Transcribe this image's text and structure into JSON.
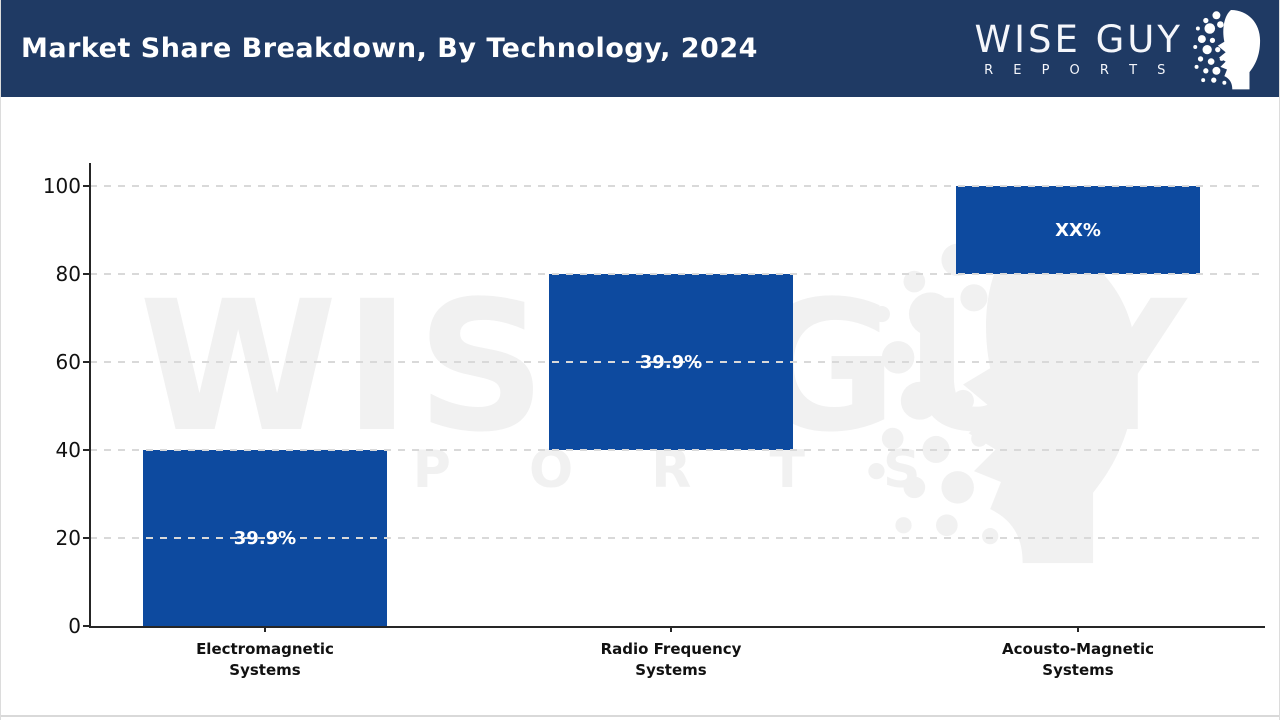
{
  "header": {
    "title": "Market Share Breakdown, By Technology, 2024",
    "brand": {
      "line1": "WISE GUY",
      "line2": "R E P O R T S"
    }
  },
  "watermark": {
    "line1": "WISE GUY",
    "line2": "R E P O R T S"
  },
  "chart_data": {
    "type": "bar",
    "subtype": "waterfall",
    "title": "Market Share Breakdown, By Technology, 2024",
    "categories": [
      "Electromagnetic Systems",
      "Radio Frequency Systems",
      "Acousto-Magnetic Systems"
    ],
    "category_lines": [
      [
        "Electromagnetic",
        "Systems"
      ],
      [
        "Radio Frequency",
        "Systems"
      ],
      [
        "Acousto-Magnetic",
        "Systems"
      ]
    ],
    "bars": [
      {
        "start": 0,
        "end": 40,
        "label": "39.9%"
      },
      {
        "start": 40,
        "end": 80,
        "label": "39.9%"
      },
      {
        "start": 80,
        "end": 100,
        "label": "XX%"
      }
    ],
    "ylim": [
      0,
      100
    ],
    "yticks": [
      0,
      20,
      40,
      60,
      80,
      100
    ],
    "xlabel": "",
    "ylabel": "",
    "grid": {
      "axis": "y",
      "style": "dashed",
      "color": "#d9d9d9"
    },
    "legend": null,
    "colors": {
      "bar": "#0d4a9f",
      "bar_label": "#ffffff",
      "axis": "#262626",
      "tick_label": "#111111",
      "header_bg": "#1f3a64",
      "watermark": "#f1f1f1"
    }
  }
}
